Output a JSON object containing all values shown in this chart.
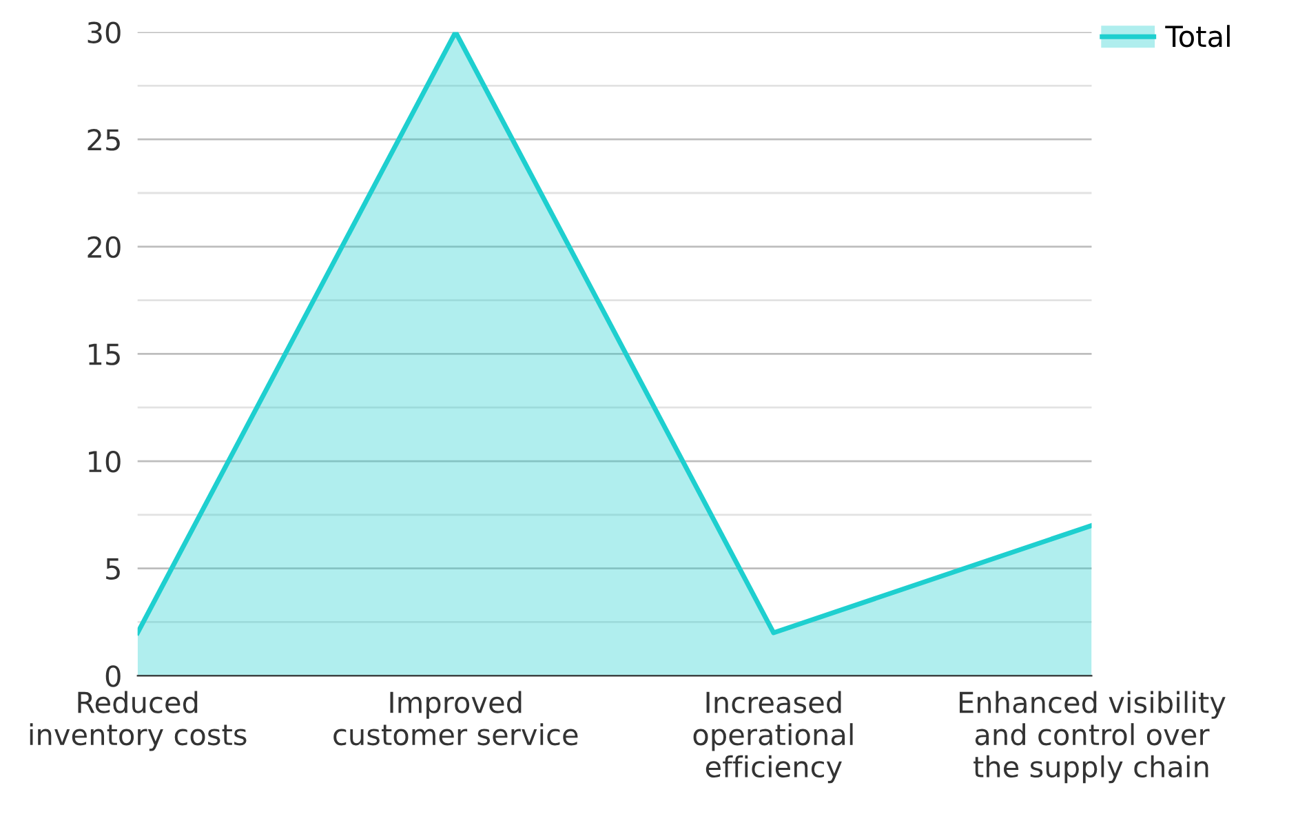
{
  "chart_data": {
    "type": "area",
    "categories": [
      "Reduced\ninventory costs",
      "Improved\ncustomer service",
      "Increased\noperational\nefficiency",
      "Enhanced visibility\nand control over\nthe supply chain"
    ],
    "series": [
      {
        "name": "Total",
        "color": "#1ecfcf",
        "values": [
          2,
          30,
          2,
          7
        ]
      }
    ],
    "ylim": [
      0,
      30
    ],
    "yticks": [
      0,
      {
        "value": 2.5,
        "label": null
      },
      5,
      {
        "value": 7.5,
        "label": null
      },
      10,
      {
        "value": 12.5,
        "label": null
      },
      15,
      {
        "value": 17.5,
        "label": null
      },
      20,
      {
        "value": 22.5,
        "label": null
      },
      25,
      {
        "value": 27.5,
        "label": null
      },
      30
    ],
    "grid": "y",
    "legend": "top right"
  }
}
